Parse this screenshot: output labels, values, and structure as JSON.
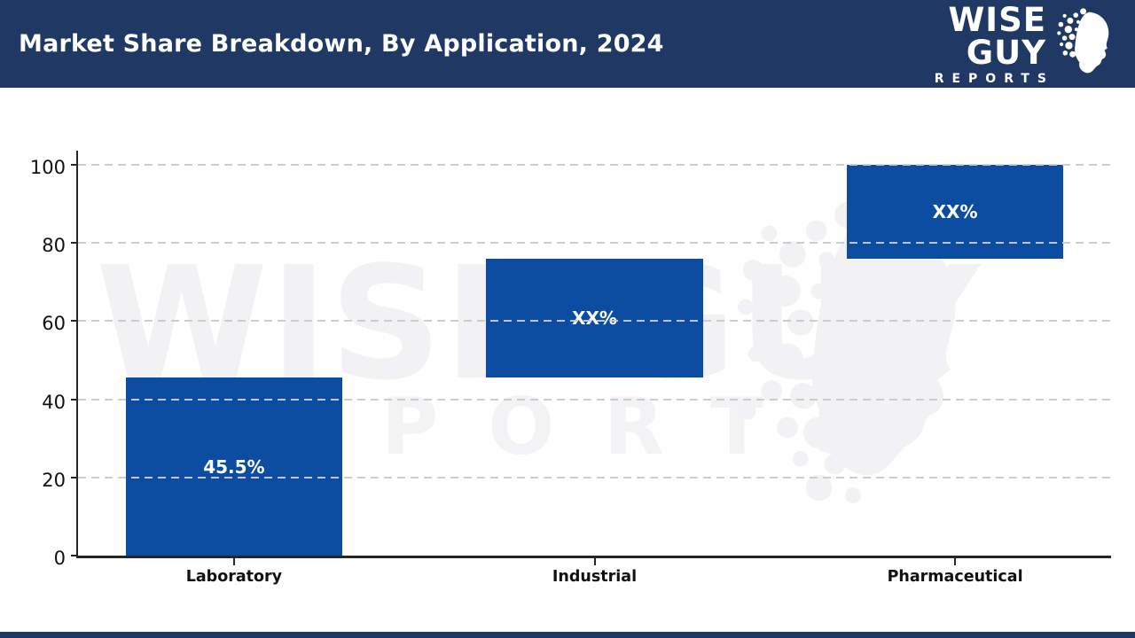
{
  "header": {
    "title": "Market Share Breakdown, By Application, 2024",
    "bg_color": "#1f3864",
    "logo": {
      "line1": "WISE GUY",
      "line2": "REPORTS"
    }
  },
  "watermark": {
    "line1": "WISE GUY",
    "line2": "REPORTS"
  },
  "footer": {
    "bg_color": "#1f3864"
  },
  "chart_data": {
    "type": "bar",
    "subtype": "floating-segment-bars (cumulative market share breakdown)",
    "title": "Market Share Breakdown, By Application, 2024",
    "categories": [
      "Laboratory",
      "Industrial",
      "Pharmaceutical"
    ],
    "segments": [
      {
        "category": "Laboratory",
        "start": 0,
        "end": 45.5,
        "label": "45.5%"
      },
      {
        "category": "Industrial",
        "start": 45.5,
        "end": 76,
        "label": "XX%"
      },
      {
        "category": "Pharmaceutical",
        "start": 76,
        "end": 100,
        "label": "XX%"
      }
    ],
    "yticks": [
      0,
      20,
      40,
      60,
      80,
      100
    ],
    "ylim": [
      0,
      103.6
    ],
    "xlabel": "",
    "ylabel": "",
    "grid": "horizontal-dashed",
    "legend": "none",
    "bar_color": "#0c4da2",
    "bar_label_color": "#ffffff",
    "axis_color": "#262626",
    "grid_color": "#cbcbcb"
  }
}
